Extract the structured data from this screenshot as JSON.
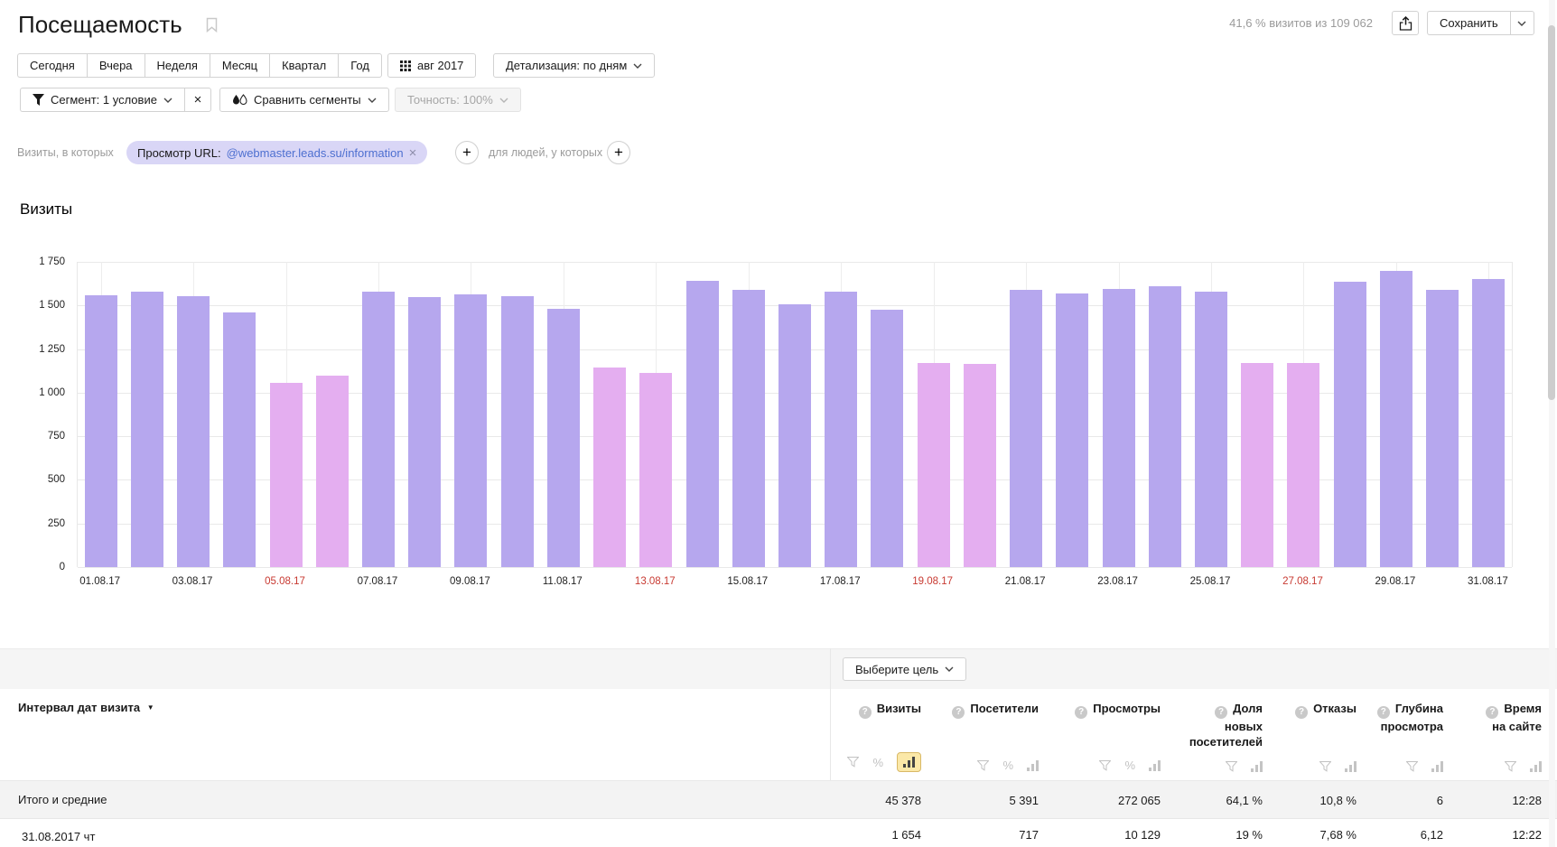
{
  "header": {
    "title": "Посещаемость",
    "stats": "41,6 % визитов из 109 062",
    "save_label": "Сохранить"
  },
  "toolbar": {
    "periods": [
      "Сегодня",
      "Вчера",
      "Неделя",
      "Месяц",
      "Квартал",
      "Год"
    ],
    "date_label": "авг 2017",
    "detail_label": "Детализация: по дням",
    "segment_label": "Сегмент: 1 условие",
    "segment_close": "×",
    "compare_label": "Сравнить сегменты",
    "accuracy_label": "Точность: 100%"
  },
  "filters": {
    "visits_prefix": "Визиты, в которых",
    "chip_label": "Просмотр URL:",
    "chip_value": "@webmaster.leads.su/information",
    "chip_close": "×",
    "plus": "+",
    "people_prefix": "для людей, у которых"
  },
  "section": {
    "title": "Визиты"
  },
  "chart_data": {
    "type": "bar",
    "title": "Визиты",
    "x": [
      "01.08.17",
      "02.08.17",
      "03.08.17",
      "04.08.17",
      "05.08.17",
      "06.08.17",
      "07.08.17",
      "08.08.17",
      "09.08.17",
      "10.08.17",
      "11.08.17",
      "12.08.17",
      "13.08.17",
      "14.08.17",
      "15.08.17",
      "16.08.17",
      "17.08.17",
      "18.08.17",
      "19.08.17",
      "20.08.17",
      "21.08.17",
      "22.08.17",
      "23.08.17",
      "24.08.17",
      "25.08.17",
      "26.08.17",
      "27.08.17",
      "28.08.17",
      "29.08.17",
      "30.08.17",
      "31.08.17"
    ],
    "values": [
      1560,
      1580,
      1555,
      1460,
      1055,
      1100,
      1580,
      1550,
      1565,
      1555,
      1480,
      1145,
      1115,
      1640,
      1590,
      1505,
      1580,
      1475,
      1170,
      1165,
      1590,
      1570,
      1595,
      1610,
      1580,
      1170,
      1170,
      1635,
      1700,
      1590,
      1654
    ],
    "weekend_indices": [
      4,
      5,
      11,
      12,
      18,
      19,
      25,
      26
    ],
    "ylabel": "",
    "xlabel": "",
    "ylim": [
      0,
      1750
    ],
    "yticks": [
      {
        "label": "1 750",
        "value": 1750
      },
      {
        "label": "1 500",
        "value": 1500
      },
      {
        "label": "1 250",
        "value": 1250
      },
      {
        "label": "1 000",
        "value": 1000
      },
      {
        "label": "750",
        "value": 750
      },
      {
        "label": "500",
        "value": 500
      },
      {
        "label": "250",
        "value": 250
      },
      {
        "label": "0",
        "value": 0
      }
    ],
    "grid": true,
    "legend": false,
    "colors": {
      "weekday_bar": "#b6a7ee",
      "weekend_bar": "#e4aef0",
      "red_tick": "#c83a32"
    }
  },
  "table": {
    "goal_button": "Выберите цель",
    "date_col_header": "Интервал дат визита",
    "sort_caret": "▼",
    "columns": [
      {
        "label": "Визиты",
        "lines": [
          "Визиты"
        ],
        "has_percent": true,
        "active_sort": true
      },
      {
        "label": "Посетители",
        "lines": [
          "Посетители"
        ],
        "has_percent": true,
        "active_sort": false
      },
      {
        "label": "Просмотры",
        "lines": [
          "Просмотры"
        ],
        "has_percent": true,
        "active_sort": false
      },
      {
        "label": "Доля новых посетителей",
        "lines": [
          "Доля",
          "новых",
          "посетителей"
        ],
        "has_percent": false,
        "active_sort": false
      },
      {
        "label": "Отказы",
        "lines": [
          "Отказы"
        ],
        "has_percent": false,
        "active_sort": false
      },
      {
        "label": "Глубина просмотра",
        "lines": [
          "Глубина",
          "просмотра"
        ],
        "has_percent": false,
        "active_sort": false
      },
      {
        "label": "Время на сайте",
        "lines": [
          "Время",
          "на сайте"
        ],
        "has_percent": false,
        "active_sort": false
      }
    ],
    "totals_row": {
      "label": "Итого и средние",
      "values": [
        "45 378",
        "5 391",
        "272 065",
        "64,1 %",
        "10,8 %",
        "6",
        "12:28"
      ]
    },
    "rows": [
      {
        "label": "31.08.2017 чт",
        "values": [
          "1 654",
          "717",
          "10 129",
          "19 %",
          "7,68 %",
          "6,12",
          "12:22"
        ]
      }
    ],
    "row_bar_colors": [
      "#f1c77b",
      "#f8e2b8",
      "#f8e2b8",
      "#f8e2b8",
      "#f8e2b8",
      "#f8e2b8",
      "#f8e2b8"
    ]
  },
  "colors": {
    "weekday_bar": "#b6a7ee",
    "weekend_bar": "#e4aef0",
    "chip_bg": "#d9d6f6",
    "link_blue": "#4d6fd0",
    "active_sort_bg": "#fbe8a8",
    "band_grey": "#f5f5f5",
    "totals_row_grey": "#f3f3f3"
  }
}
